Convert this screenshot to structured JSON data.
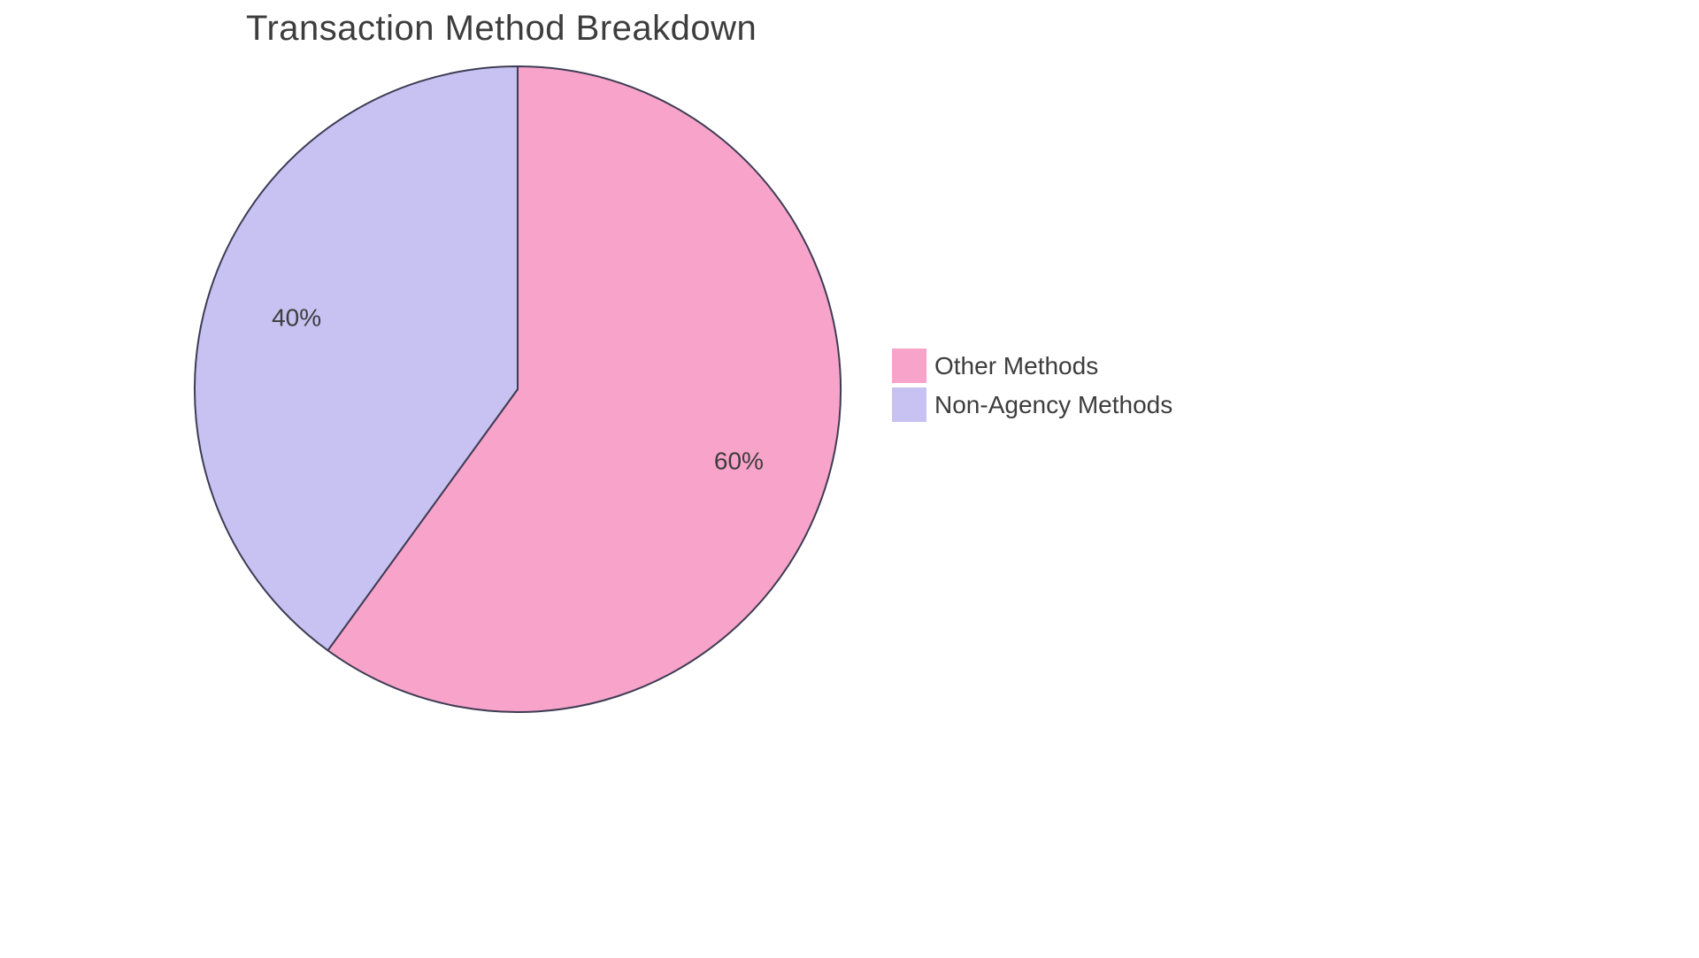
{
  "chart_data": {
    "type": "pie",
    "title": "Transaction Method Breakdown",
    "slices": [
      {
        "label": "Other Methods",
        "value": 60,
        "pct_label": "60%",
        "color": "#F8A3C9"
      },
      {
        "label": "Non-Agency Methods",
        "value": 40,
        "pct_label": "40%",
        "color": "#C7C2F2"
      }
    ],
    "start_angle_deg": 0,
    "direction": "clockwise",
    "outline_color": "#3E3C54",
    "label_color": "#3D3D3D",
    "legend_position": "right",
    "background_color": "#FFFFFF"
  }
}
